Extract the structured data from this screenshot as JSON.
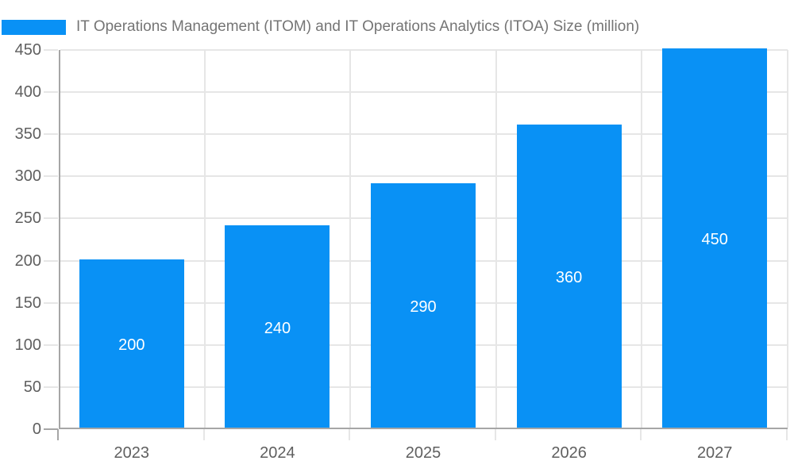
{
  "legend": {
    "label": "IT Operations Management (ITOM) and IT Operations Analytics (ITOA) Size (million)",
    "swatch_color": "#0991f5"
  },
  "chart_data": {
    "type": "bar",
    "title": "IT Operations Management (ITOM) and IT Operations Analytics (ITOA) Size (million)",
    "categories": [
      "2023",
      "2024",
      "2025",
      "2026",
      "2027"
    ],
    "values": [
      200,
      240,
      290,
      360,
      450
    ],
    "value_labels": [
      "200",
      "240",
      "290",
      "360",
      "450"
    ],
    "xlabel": "",
    "ylabel": "",
    "ylim": [
      0,
      450
    ],
    "ytick_step": 50,
    "yticks": [
      0,
      50,
      100,
      150,
      200,
      250,
      300,
      350,
      400,
      450
    ],
    "grid": true,
    "legend_position": "top",
    "bar_color": "#0991f5",
    "value_label_color": "#ffffff",
    "gridline_color": "#e6e6e6",
    "axis_line_color": "#a6a6a6",
    "tick_label_color": "#5f5f5f",
    "legend_text_color": "#757575"
  }
}
